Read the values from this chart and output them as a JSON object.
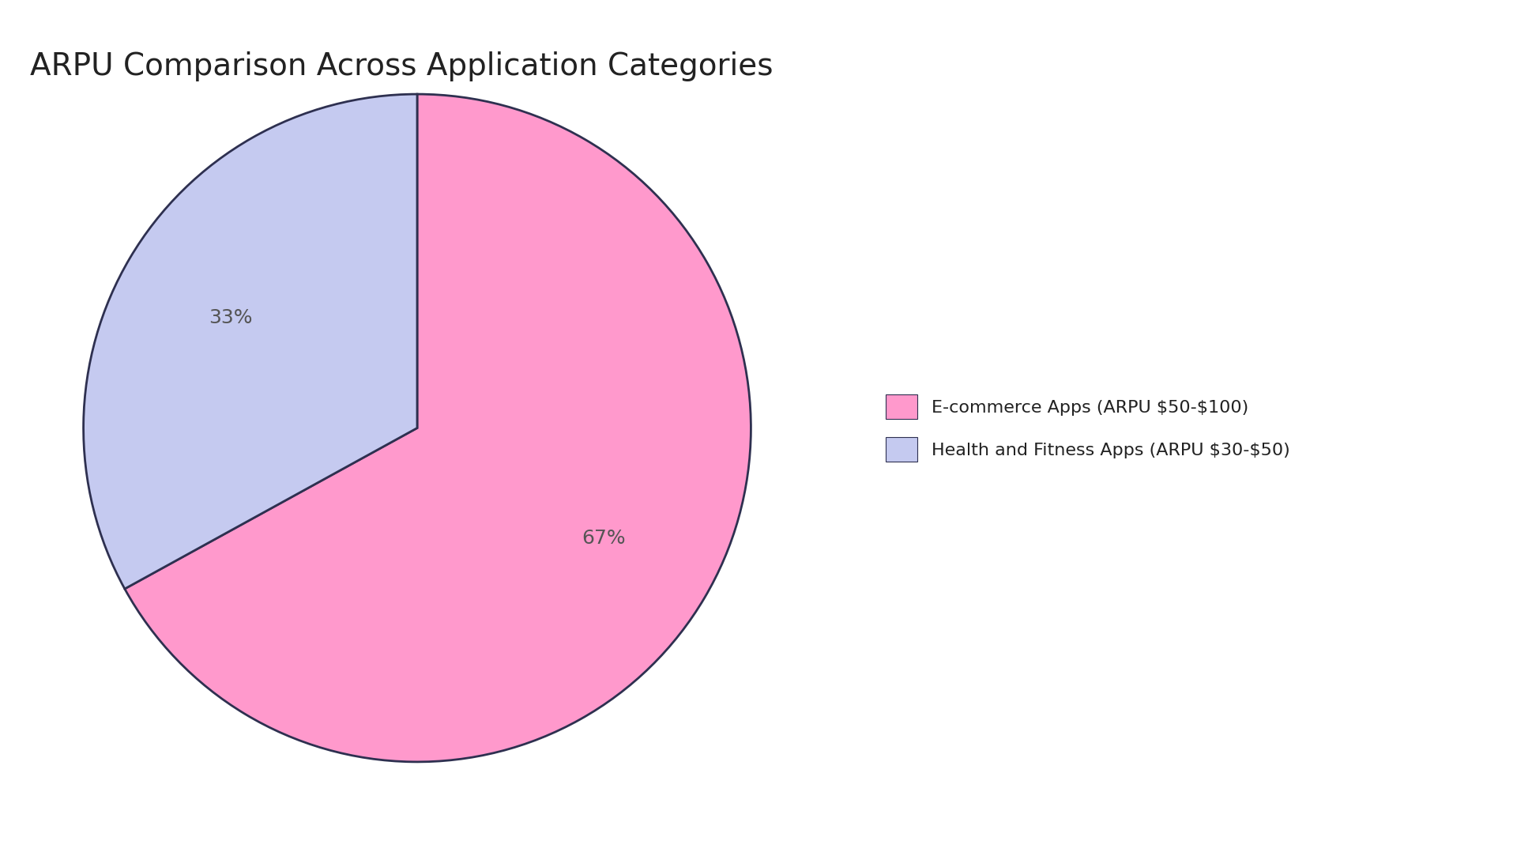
{
  "title": "ARPU Comparison Across Application Categories",
  "slices": [
    {
      "label": "E-commerce Apps (ARPU \\$50-\\$100)",
      "value": 67,
      "color": "#FF99CC"
    },
    {
      "label": "Health and Fitness Apps (ARPU \\$30-\\$50)",
      "value": 33,
      "color": "#C5CAF0"
    }
  ],
  "background_color": "#FFFFFF",
  "title_fontsize": 28,
  "title_color": "#222222",
  "pct_fontsize": 18,
  "pct_color": "#555555",
  "legend_fontsize": 16,
  "wedge_edge_color": "#2E3050",
  "wedge_linewidth": 2.0,
  "startangle": 90,
  "counterclock": false
}
